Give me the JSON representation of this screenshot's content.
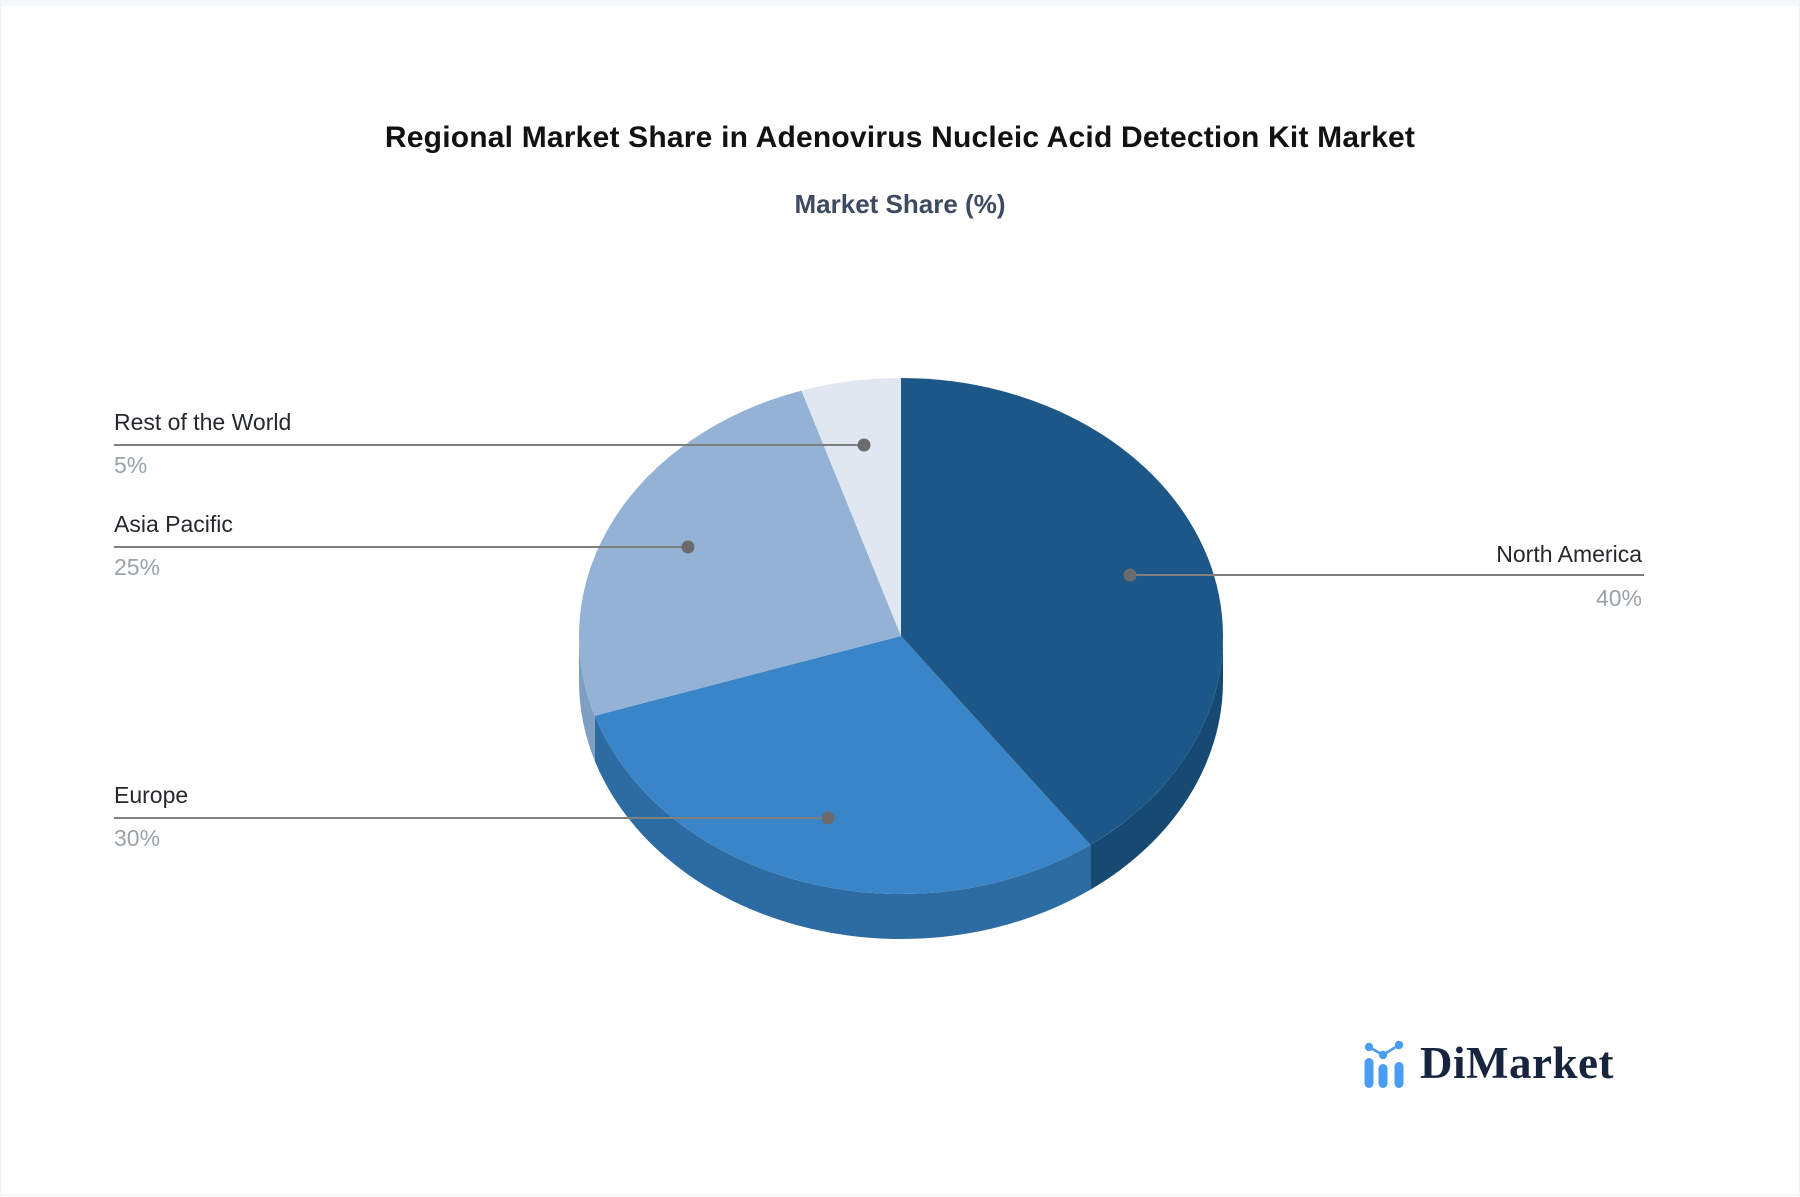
{
  "header": {
    "title": "Regional Market Share in Adenovirus Nucleic Acid Detection Kit Market",
    "subtitle": "Market Share (%)"
  },
  "chart_data": {
    "type": "pie",
    "effect": "3d",
    "title": "Regional Market Share in Adenovirus Nucleic Acid Detection Kit Market",
    "subtitle": "Market Share (%)",
    "unit": "%",
    "direction": "clockwise",
    "start_angle_deg": 0,
    "legend_position": "none",
    "slices": [
      {
        "label": "North America",
        "value": 40,
        "value_text": "40%",
        "color": "#1D5788",
        "side_color": "#164A73",
        "label_side": "right"
      },
      {
        "label": "Europe",
        "value": 30,
        "value_text": "30%",
        "color": "#3A85C8",
        "side_color": "#2D6BA3",
        "label_side": "left"
      },
      {
        "label": "Asia Pacific",
        "value": 25,
        "value_text": "25%",
        "color": "#94B2D6",
        "side_color": "#7E9EC2",
        "label_side": "left"
      },
      {
        "label": "Rest of the World",
        "value": 5,
        "value_text": "5%",
        "color": "#E0E7F0",
        "side_color": "#C9D4E2",
        "label_side": "left"
      }
    ]
  },
  "styles": {
    "leader_line_color": "#7F7F7F",
    "leader_dot_color": "#6B6B6B",
    "label_text_color": "#25282C",
    "value_text_color": "#9AA3A9",
    "title_color": "#121212",
    "subtitle_color": "#3D4A5F",
    "background": "#FFFFFF"
  },
  "branding": {
    "logo_text": "DiMarket",
    "logo_text_color": "#16243D",
    "logo_icon": "bar-sparkline-icon",
    "logo_icon_color": "#4A9DF2"
  }
}
